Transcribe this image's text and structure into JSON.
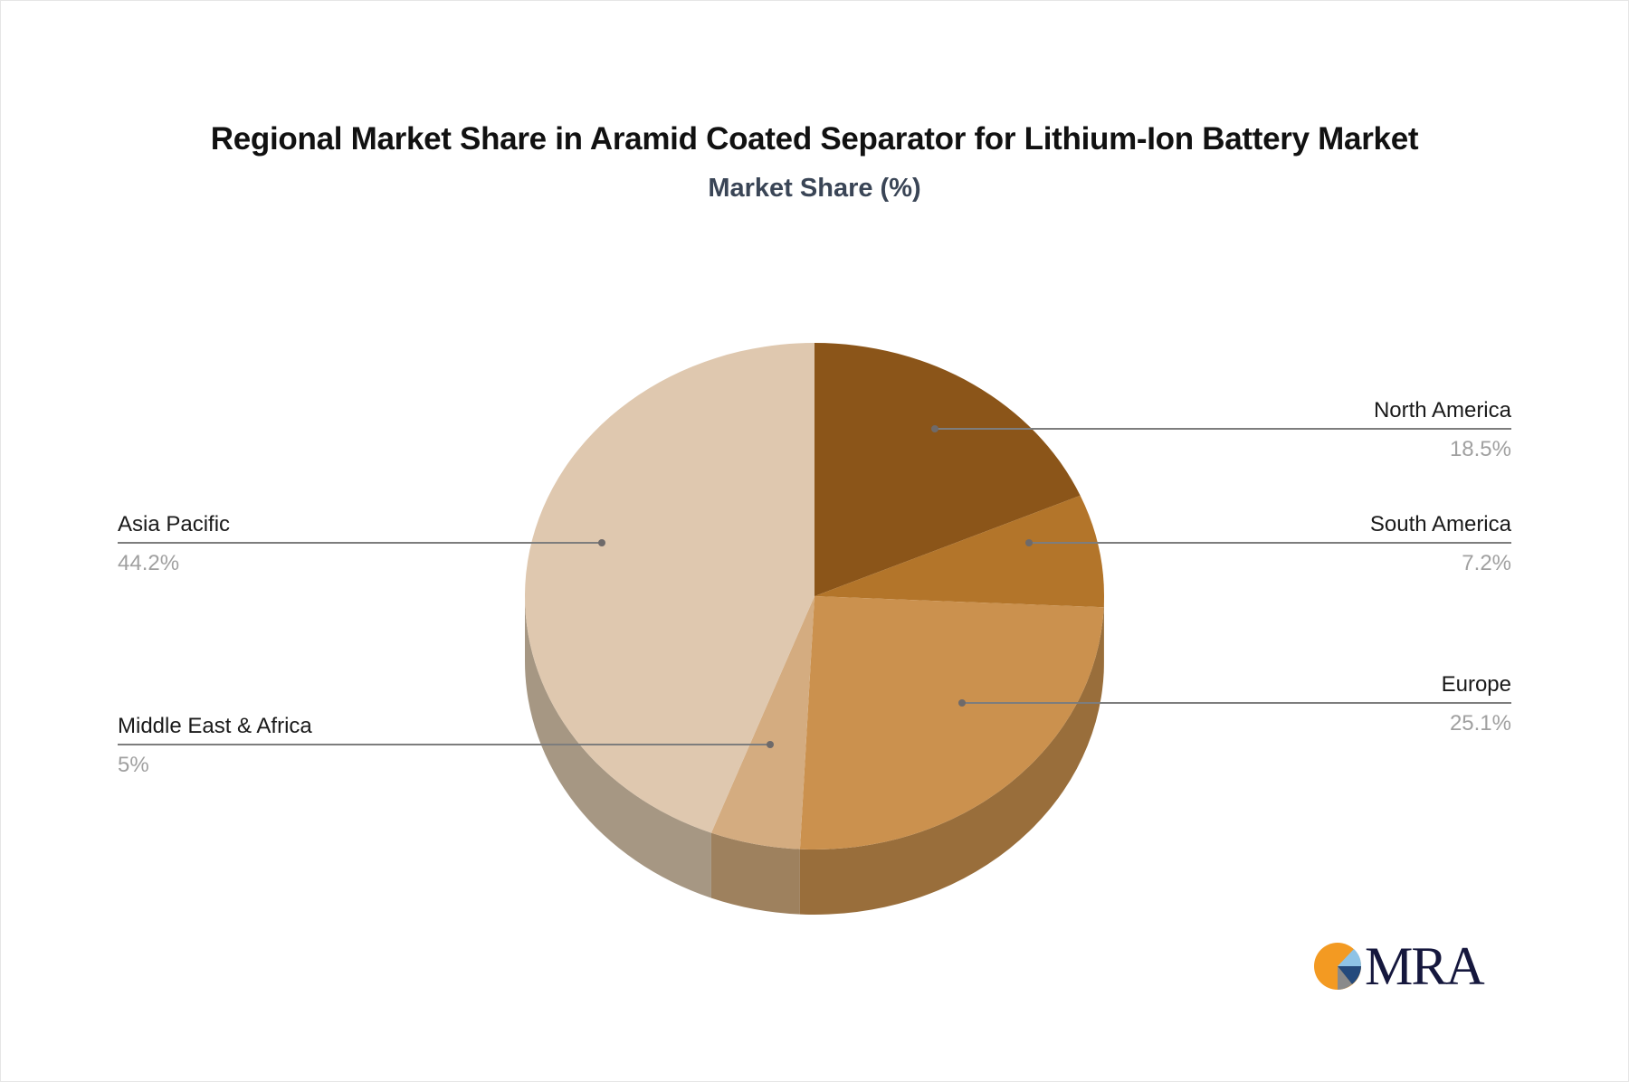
{
  "title": "Regional Market Share in Aramid Coated Separator for Lithium-Ion Battery Market",
  "subtitle": "Market Share (%)",
  "logo": {
    "text": "MRA",
    "icon": "pie-logo-icon",
    "colors": [
      "#f39a22",
      "#8a8a8a",
      "#244a7c",
      "#8ec3e6"
    ]
  },
  "chart_data": {
    "type": "pie",
    "title": "Regional Market Share in Aramid Coated Separator for Lithium-Ion Battery Market",
    "subtitle": "Market Share (%)",
    "style": "3d",
    "start_angle": "12 o'clock, clockwise",
    "slices": [
      {
        "label": "North America",
        "value": 18.5,
        "display": "18.5%",
        "color": "#8b5519",
        "side": "#6f4414"
      },
      {
        "label": "South America",
        "value": 7.2,
        "display": "7.2%",
        "color": "#b3752a",
        "side": "#8e5d22"
      },
      {
        "label": "Europe",
        "value": 25.1,
        "display": "25.1%",
        "color": "#cb914e",
        "side": "#996e3b"
      },
      {
        "label": "Middle East & Africa",
        "value": 5,
        "display": "5%",
        "color": "#d4ac80",
        "side": "#9e815e"
      },
      {
        "label": "Asia Pacific",
        "value": 44.2,
        "display": "44.2%",
        "color": "#dfc8af",
        "side": "#a69783"
      }
    ],
    "legend": "callout labels"
  }
}
